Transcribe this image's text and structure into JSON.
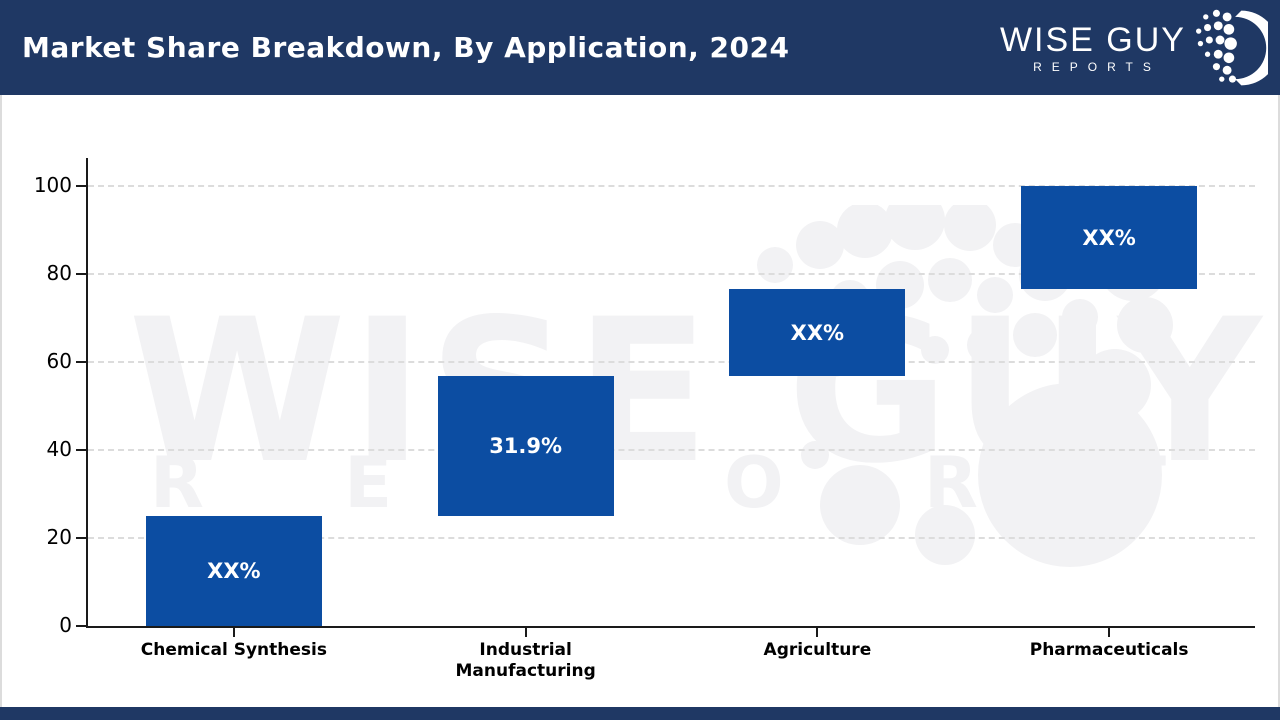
{
  "header": {
    "title": "Market Share Breakdown, By Application, 2024",
    "logo": {
      "line1": "WISE GUY",
      "line2": "REPORTS"
    }
  },
  "watermark": {
    "line1": "WISE GUY",
    "line2": "R E P O R T S"
  },
  "colors": {
    "header_bg": "#1f3864",
    "footer_bg": "#1f3864",
    "bar": "#0c4da2",
    "bar_label_text": "#ffffff",
    "grid": "#dcdcdc",
    "axis": "#1a1a1a",
    "tick_label": "#000000",
    "title_text": "#ffffff",
    "watermark": "#f2f2f4",
    "page_bg": "#ffffff"
  },
  "chart_data": {
    "type": "bar",
    "variant": "floating-segment-waterfall",
    "title": "Market Share Breakdown, By Application, 2024",
    "categories": [
      "Chemical Synthesis",
      "Industrial\nManufacturing",
      "Agriculture",
      "Pharmaceuticals"
    ],
    "segments": [
      {
        "category": "Chemical Synthesis",
        "start": 0,
        "end": 25.0,
        "value_label": "XX%"
      },
      {
        "category": "Industrial Manufacturing",
        "start": 25.0,
        "end": 56.9,
        "value_label": "31.9%"
      },
      {
        "category": "Agriculture",
        "start": 56.9,
        "end": 76.5,
        "value_label": "XX%"
      },
      {
        "category": "Pharmaceuticals",
        "start": 76.5,
        "end": 100.0,
        "value_label": "XX%"
      }
    ],
    "yticks": [
      0,
      20,
      40,
      60,
      80,
      100
    ],
    "ylim": [
      0,
      106
    ],
    "xlabel": "",
    "ylabel": "",
    "grid": "horizontal-dashed",
    "legend": "none",
    "bar_color": "#0c4da2"
  }
}
